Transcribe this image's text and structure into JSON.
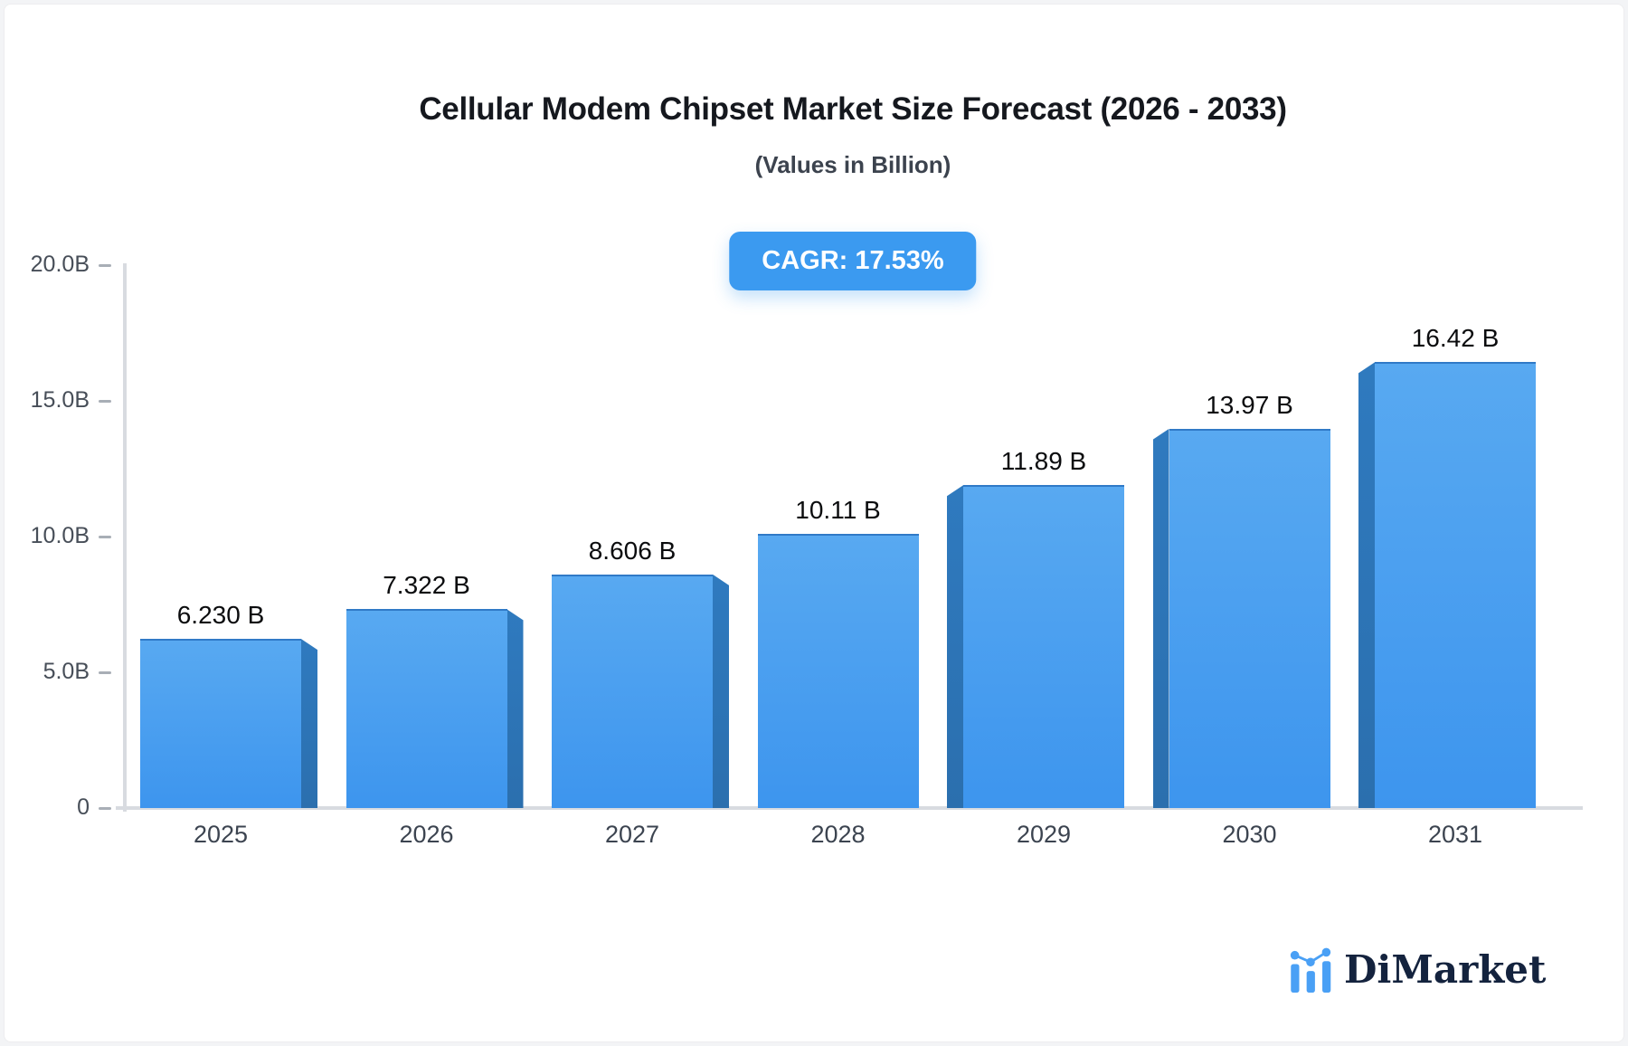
{
  "title": "Cellular Modem Chipset Market Size Forecast (2026 - 2033)",
  "subtitle": "(Values in Billion)",
  "badge": {
    "label": "CAGR: 17.53%",
    "bg_color": "#3b9af0"
  },
  "logo": {
    "text": "DiMarket",
    "icon": "mini-bar-chart-icon",
    "icon_color": "#4aa0f5",
    "text_color": "#14233e"
  },
  "chart_data": {
    "type": "bar",
    "title": "Cellular Modem Chipset Market Size Forecast (2026 - 2033)",
    "subtitle": "(Values in Billion)",
    "categories": [
      "2025",
      "2026",
      "2027",
      "2028",
      "2029",
      "2030",
      "2031"
    ],
    "values": [
      6.23,
      7.322,
      8.606,
      10.11,
      11.89,
      13.97,
      16.42
    ],
    "value_labels": [
      "6.230 B",
      "7.322 B",
      "8.606 B",
      "10.11 B",
      "11.89 B",
      "13.97 B",
      "16.42 B"
    ],
    "y_ticks": [
      {
        "label": "20.0B",
        "value": 20
      },
      {
        "label": "15.0B",
        "value": 15
      },
      {
        "label": "10.0B",
        "value": 10
      },
      {
        "label": "5.0B",
        "value": 5
      },
      {
        "label": "0",
        "value": 0
      }
    ],
    "ylim": [
      0,
      20
    ],
    "xlabel": "",
    "ylabel": "",
    "grid": false,
    "legend": false,
    "bar_color_top": "#58a9f1",
    "bar_color_bottom": "#3d95ee",
    "bar_side_color_top": "#2f7abf",
    "bar_side_color_bottom": "#2b6fae"
  }
}
